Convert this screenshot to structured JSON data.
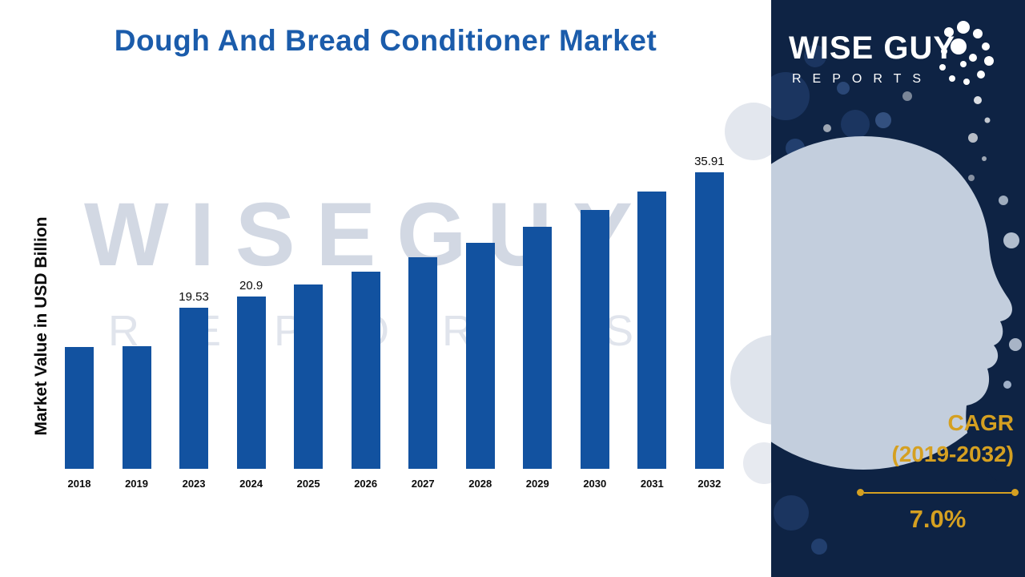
{
  "page": {
    "title": "Dough And Bread Conditioner Market",
    "y_axis_label": "Market Value in USD Billion"
  },
  "watermark": {
    "line1": "WISEGUY",
    "line2": "REPORTS"
  },
  "brand": {
    "line1": "WISE GUY",
    "line2": "REPORTS"
  },
  "cagr": {
    "label": "CAGR",
    "range": "(2019-2032)",
    "value": "7.0%"
  },
  "colors": {
    "bar": "#1252a0",
    "title": "#1b5cab",
    "panel": "#0e2344",
    "accent_gold": "#d5a021",
    "watermark": "#d2d8e3"
  },
  "chart_data": {
    "type": "bar",
    "categories": [
      "2018",
      "2019",
      "2023",
      "2024",
      "2025",
      "2026",
      "2027",
      "2028",
      "2029",
      "2030",
      "2031",
      "2032"
    ],
    "values": [
      14.8,
      14.9,
      19.53,
      20.9,
      22.35,
      23.9,
      25.6,
      27.4,
      29.3,
      31.4,
      33.6,
      35.91
    ],
    "data_labels": [
      "",
      "",
      "19.53",
      "20.9",
      "",
      "",
      "",
      "",
      "",
      "",
      "",
      "35.91"
    ],
    "title": "Dough And Bread Conditioner Market",
    "xlabel": "",
    "ylabel": "Market Value in USD Billion",
    "ylim": [
      0,
      40
    ],
    "grid": false,
    "legend": false
  }
}
